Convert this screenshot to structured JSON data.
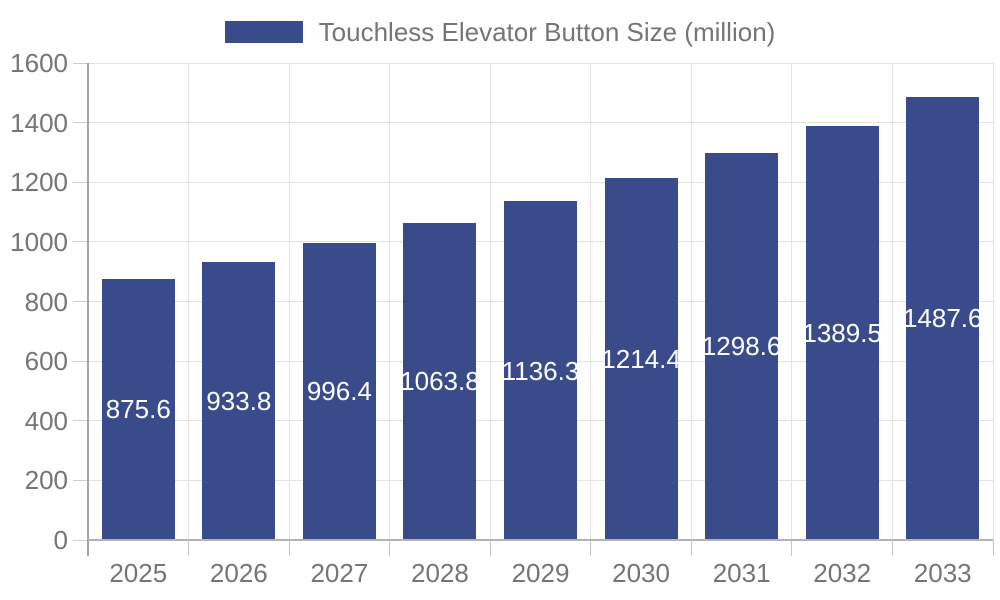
{
  "legend": {
    "label": "Touchless Elevator Button Size (million)"
  },
  "chart_data": {
    "type": "bar",
    "title": "Touchless Elevator Button Size (million)",
    "series_name": "Touchless Elevator Button Size (million)",
    "categories": [
      "2025",
      "2026",
      "2027",
      "2028",
      "2029",
      "2030",
      "2031",
      "2032",
      "2033"
    ],
    "values": [
      875.6,
      933.8,
      996.4,
      1063.8,
      1136.3,
      1214.4,
      1298.6,
      1389.5,
      1487.6
    ],
    "value_labels": [
      "875.6",
      "933.8",
      "996.4",
      "1063.8",
      "1136.3",
      "1214.4",
      "1298.6",
      "1389.5",
      "1487.6"
    ],
    "xlabel": "",
    "ylabel": "",
    "ylim": [
      0,
      1600
    ],
    "yticks": [
      0,
      200,
      400,
      600,
      800,
      1000,
      1200,
      1400,
      1600
    ],
    "grid": true,
    "legend_position": "top",
    "value_label_position": "inside-center",
    "colors": {
      "bar": "#3a4b8c",
      "value_label": "#ffffff",
      "axis_text": "#757575",
      "gridline": "#e2e2e2",
      "axis_line": "#a3a3a3",
      "background": "#ffffff"
    }
  }
}
